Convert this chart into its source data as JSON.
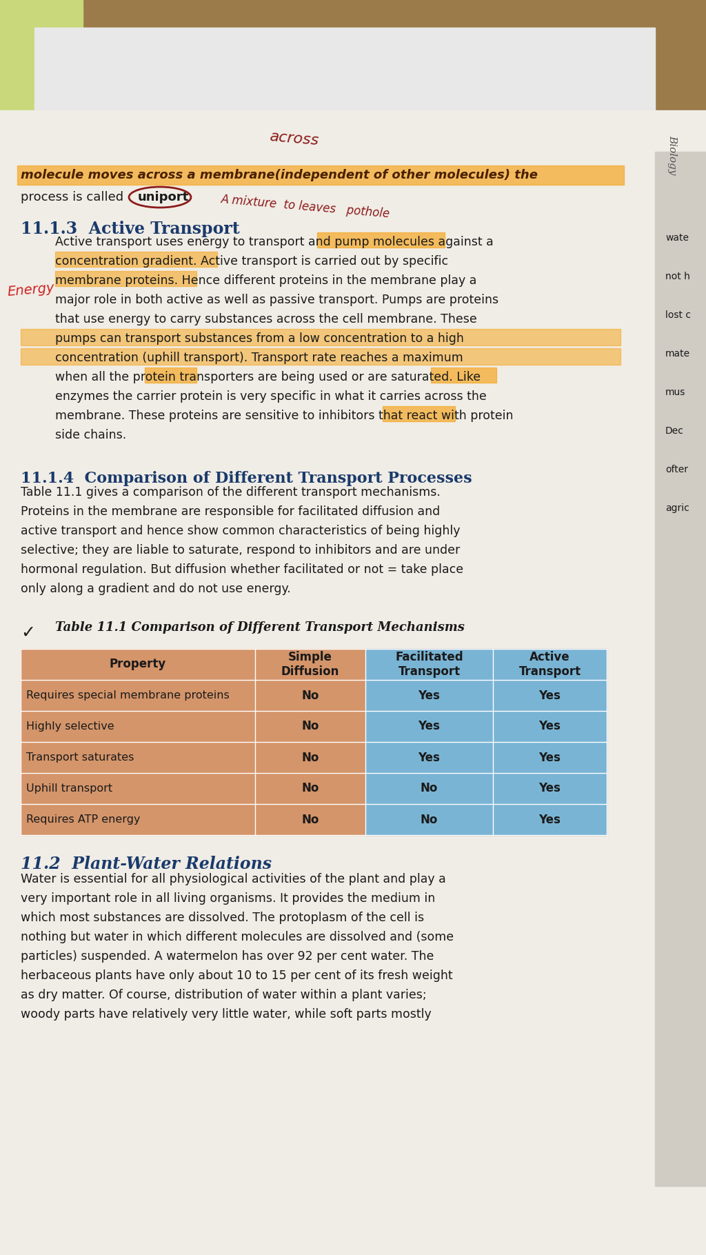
{
  "bg_top_color": "#c8b06e",
  "bg_green_color": "#c8d87a",
  "bg_page_color": "#e8e4dc",
  "bg_white_color": "#f0ede6",
  "title_color": "#1a3a6b",
  "body_color": "#1a1a1a",
  "highlight_orange": "#f5a623",
  "highlight_orange2": "#e8891a",
  "handwriting_color": "#8b1a1a",
  "handwriting_color2": "#6b3a1a",
  "table_header_bg": "#d4956a",
  "table_blue_bg": "#7ab4d4",
  "table_orange_bg": "#d4956a",
  "section_title_color": "#1a3a6b",
  "top_text_line1": "molecule moves across a membrane(independent of other molecules) the",
  "top_text_line2": "process is called uniport",
  "handwritten_across": "across",
  "handwritten_top": "A mixture to leaves  pothole",
  "handwritten_energy": "Energy",
  "section_113": "11.1.3  Active Transport",
  "para_113": "Active transport uses energy to transport and pump molecules against a concentration gradient. Active transport is carried out by specific membrane proteins. Hence different proteins in the membrane play a major role in both active as well as passive transport. Pumps are proteins that use energy to carry substances across the cell membrane. These pumps can transport substances from a low concentration to a high concentration (uphill transport). Transport rate reaches a maximum when all the protein transporters are being used or are saturated. Like enzymes the carrier protein is very specific in what it carries across the membrane. These proteins are sensitive to inhibitors that react with protein side chains.",
  "section_114": "11.1.4  Comparison of Different Transport Processes",
  "para_114": "Table 11.1 gives a comparison of the different transport mechanisms. Proteins in the membrane are responsible for facilitated diffusion and active transport and hence show common characteristics of being highly selective; they are liable to saturate, respond to inhibitors and are under hormonal regulation. But diffusion whether facilitated or not = take place only along a gradient and do not use energy.",
  "table_title": "Table 11.1 Comparison of Different Transport Mechanisms",
  "table_headers": [
    "Property",
    "Simple\nDiffusion",
    "Facilitated\nTransport",
    "Active\nTransport"
  ],
  "table_rows": [
    [
      "Requires special membrane proteins",
      "No",
      "Yes",
      "Yes"
    ],
    [
      "Highly selective",
      "No",
      "Yes",
      "Yes"
    ],
    [
      "Transport saturates",
      "No",
      "Yes",
      "Yes"
    ],
    [
      "Uphill transport",
      "No",
      "No",
      "Yes"
    ],
    [
      "Requires ATP energy",
      "No",
      "No",
      "Yes"
    ]
  ],
  "section_112": "11.2  Plant-Water Relations",
  "para_112": "Water is essential for all physiological activities of the plant and play a very important role in all living organisms. It provides the medium in which most substances are dissolved. The protoplasm of the cell is nothing but water in which different molecules are dissolved and (some particles) suspended. A watermelon has over 92 per cent water. The herbaceous plants have only about 10 to 15 per cent of its fresh weight as dry matter. Of course, distribution of water within a plant varies; woody parts have relatively very little water, while soft parts mostly",
  "biology_watermark": "Biology"
}
